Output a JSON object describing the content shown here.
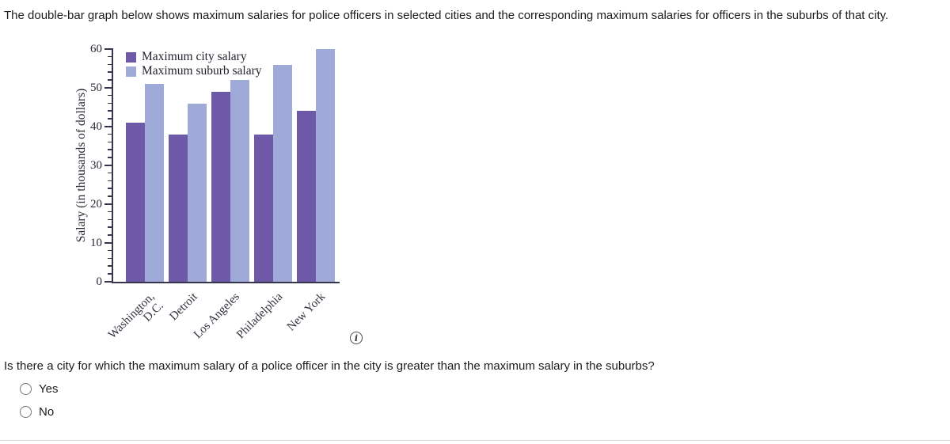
{
  "page": {
    "title": "The double-bar graph below shows maximum salaries for police officers in selected cities and the corresponding maximum salaries for officers in the suburbs of that city.",
    "question": "Is there a city for which the maximum salary of a police officer in the city is greater than the maximum salary in the suburbs?",
    "options": [
      {
        "label": "Yes",
        "selected": false
      },
      {
        "label": "No",
        "selected": false
      }
    ],
    "info_icon": "i"
  },
  "chart_data": {
    "type": "bar",
    "categories": [
      "Washington,\nD.C.",
      "Detroit",
      "Los Angeles",
      "Philadelphia",
      "New York"
    ],
    "series": [
      {
        "name": "Maximum city salary",
        "values": [
          41,
          38,
          49,
          38,
          44
        ],
        "color": "#6e58a8"
      },
      {
        "name": "Maximum suburb salary",
        "values": [
          51,
          46,
          52,
          56,
          60
        ],
        "color": "#a0aad8"
      }
    ],
    "title": "",
    "xlabel": "",
    "ylabel": "Salary (in thousands of dollars)",
    "ylim": [
      0,
      60
    ],
    "ytick_major": 10,
    "ytick_minor": 2,
    "grid": false,
    "legend_position": "top-left-inside",
    "axis_color": "#35354d"
  }
}
